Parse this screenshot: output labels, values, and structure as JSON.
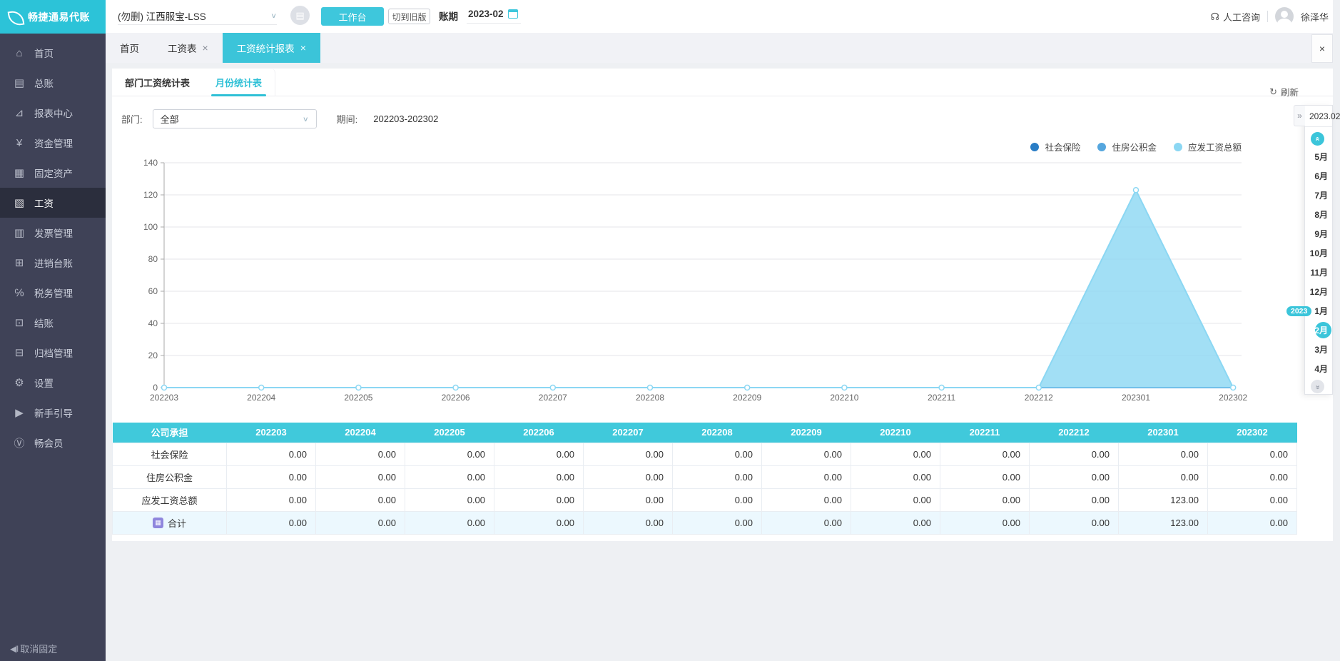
{
  "app": {
    "accent": "#3bc4d9",
    "logo_text": "畅捷通易代账"
  },
  "topbar": {
    "company": "(勿删) 江西服宝-LSS",
    "chevron_icon": "∨",
    "round_icon": "▤",
    "workbench_label": "工作台",
    "old_version_label": "切到旧版",
    "period_label": "账期",
    "period_value": "2023-02",
    "support_icon": "☊",
    "support_label": "人工咨询",
    "username": "徐泽华"
  },
  "tabs": {
    "items": [
      {
        "label": "首页",
        "closable": false,
        "active": false
      },
      {
        "label": "工资表",
        "closable": true,
        "active": false
      },
      {
        "label": "工资统计报表",
        "closable": true,
        "active": true
      }
    ],
    "close_glyph": "×",
    "overflow_glyph": "×"
  },
  "sidebar": {
    "items": [
      {
        "icon": "home-icon",
        "glyph": "⌂",
        "label": "首页",
        "active": false
      },
      {
        "icon": "ledger-icon",
        "glyph": "▤",
        "label": "总账",
        "active": false
      },
      {
        "icon": "report-center-icon",
        "glyph": "⊿",
        "label": "报表中心",
        "active": false
      },
      {
        "icon": "funds-icon",
        "glyph": "¥",
        "label": "资金管理",
        "active": false
      },
      {
        "icon": "fixed-assets-icon",
        "glyph": "▦",
        "label": "固定资产",
        "active": false
      },
      {
        "icon": "salary-icon",
        "glyph": "▧",
        "label": "工资",
        "active": true
      },
      {
        "icon": "invoice-icon",
        "glyph": "▥",
        "label": "发票管理",
        "active": false
      },
      {
        "icon": "purchase-sales-icon",
        "glyph": "⊞",
        "label": "进销台账",
        "active": false
      },
      {
        "icon": "tax-icon",
        "glyph": "℅",
        "label": "税务管理",
        "active": false
      },
      {
        "icon": "closing-icon",
        "glyph": "⊡",
        "label": "结账",
        "active": false
      },
      {
        "icon": "archive-icon",
        "glyph": "⊟",
        "label": "归档管理",
        "active": false
      },
      {
        "icon": "settings-icon",
        "glyph": "⚙",
        "label": "设置",
        "active": false
      },
      {
        "icon": "guide-icon",
        "glyph": "▶",
        "label": "新手引导",
        "active": false
      },
      {
        "icon": "member-icon",
        "glyph": "Ⓥ",
        "label": "畅会员",
        "active": false
      }
    ],
    "unpin_glyph": "◀‖",
    "unpin_label": "取消固定"
  },
  "subtabs": [
    {
      "label": "部门工资统计表",
      "active": false
    },
    {
      "label": "月份统计表",
      "active": true
    }
  ],
  "toolbar": {
    "refresh_icon": "↻",
    "refresh_label": "刷新"
  },
  "filters": {
    "dept_label": "部门:",
    "dept_value": "全部",
    "dept_chevron": "∨",
    "range_label": "期间:",
    "range_value": "202203-202302"
  },
  "chart_data": {
    "type": "area",
    "x": [
      "202203",
      "202204",
      "202205",
      "202206",
      "202207",
      "202208",
      "202209",
      "202210",
      "202211",
      "202212",
      "202301",
      "202302"
    ],
    "series": [
      {
        "name": "社会保险",
        "color": "#2a7dc5",
        "values": [
          0,
          0,
          0,
          0,
          0,
          0,
          0,
          0,
          0,
          0,
          0,
          0
        ]
      },
      {
        "name": "住房公积金",
        "color": "#55a6de",
        "values": [
          0,
          0,
          0,
          0,
          0,
          0,
          0,
          0,
          0,
          0,
          0,
          0
        ]
      },
      {
        "name": "应发工资总额",
        "color": "#8bd7f3",
        "values": [
          0,
          0,
          0,
          0,
          0,
          0,
          0,
          0,
          0,
          0,
          123,
          0
        ]
      }
    ],
    "ylim": [
      0,
      140
    ],
    "ytick_step": 20,
    "grid": true,
    "legend_position": "top-right",
    "title": "",
    "xlabel": "",
    "ylabel": ""
  },
  "table": {
    "header": [
      "公司承担",
      "202203",
      "202204",
      "202205",
      "202206",
      "202207",
      "202208",
      "202209",
      "202210",
      "202211",
      "202212",
      "202301",
      "202302"
    ],
    "rows": [
      {
        "label": "社会保险",
        "is_total": false,
        "values": [
          "0.00",
          "0.00",
          "0.00",
          "0.00",
          "0.00",
          "0.00",
          "0.00",
          "0.00",
          "0.00",
          "0.00",
          "0.00",
          "0.00"
        ]
      },
      {
        "label": "住房公积金",
        "is_total": false,
        "values": [
          "0.00",
          "0.00",
          "0.00",
          "0.00",
          "0.00",
          "0.00",
          "0.00",
          "0.00",
          "0.00",
          "0.00",
          "0.00",
          "0.00"
        ]
      },
      {
        "label": "应发工资总额",
        "is_total": false,
        "values": [
          "0.00",
          "0.00",
          "0.00",
          "0.00",
          "0.00",
          "0.00",
          "0.00",
          "0.00",
          "0.00",
          "0.00",
          "123.00",
          "0.00"
        ]
      },
      {
        "label": "合计",
        "is_total": true,
        "values": [
          "0.00",
          "0.00",
          "0.00",
          "0.00",
          "0.00",
          "0.00",
          "0.00",
          "0.00",
          "0.00",
          "0.00",
          "123.00",
          "0.00"
        ]
      }
    ]
  },
  "right_panel": {
    "handle_glyph": "»",
    "header": "2023.02",
    "scroll_up_glyph": "»",
    "scroll_down_glyph": "»",
    "months_top": [
      "5月",
      "6月",
      "7月",
      "8月",
      "9月",
      "10月",
      "11月",
      "12月"
    ],
    "year_badge": "2023",
    "months_bottom": [
      {
        "label": "1月",
        "active": false
      },
      {
        "label": "2月",
        "active": true
      },
      {
        "label": "3月",
        "active": false
      },
      {
        "label": "4月",
        "active": false
      }
    ]
  }
}
